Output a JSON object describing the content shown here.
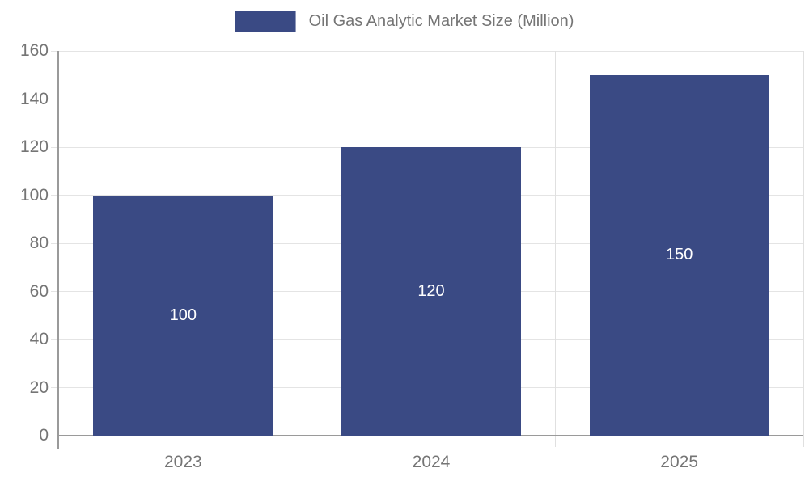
{
  "chart_data": {
    "type": "bar",
    "title": "Oil Gas Analytic Market Size (Million)",
    "categories": [
      "2023",
      "2024",
      "2025"
    ],
    "series": [
      {
        "name": "Oil Gas Analytic Market Size (Million)",
        "values": [
          100,
          120,
          150
        ]
      }
    ],
    "bar_value_labels": [
      "100",
      "120",
      "150"
    ],
    "xlabel": "",
    "ylabel": "",
    "ylim": [
      0,
      160
    ],
    "ytick_step": 20,
    "ytick_labels": [
      "0",
      "20",
      "40",
      "60",
      "80",
      "100",
      "120",
      "140",
      "160"
    ],
    "grid": true,
    "legend_position": "top-center",
    "colors": {
      "bar_fill": "#3a4a84",
      "bar_value_text": "#ffffff",
      "axis_text": "#757575",
      "legend_text": "#757575",
      "gridline": "#e4e4e4",
      "boundary_line": "#e0e0e0",
      "axis_line": "#9a9a9a",
      "background": "#ffffff"
    }
  }
}
